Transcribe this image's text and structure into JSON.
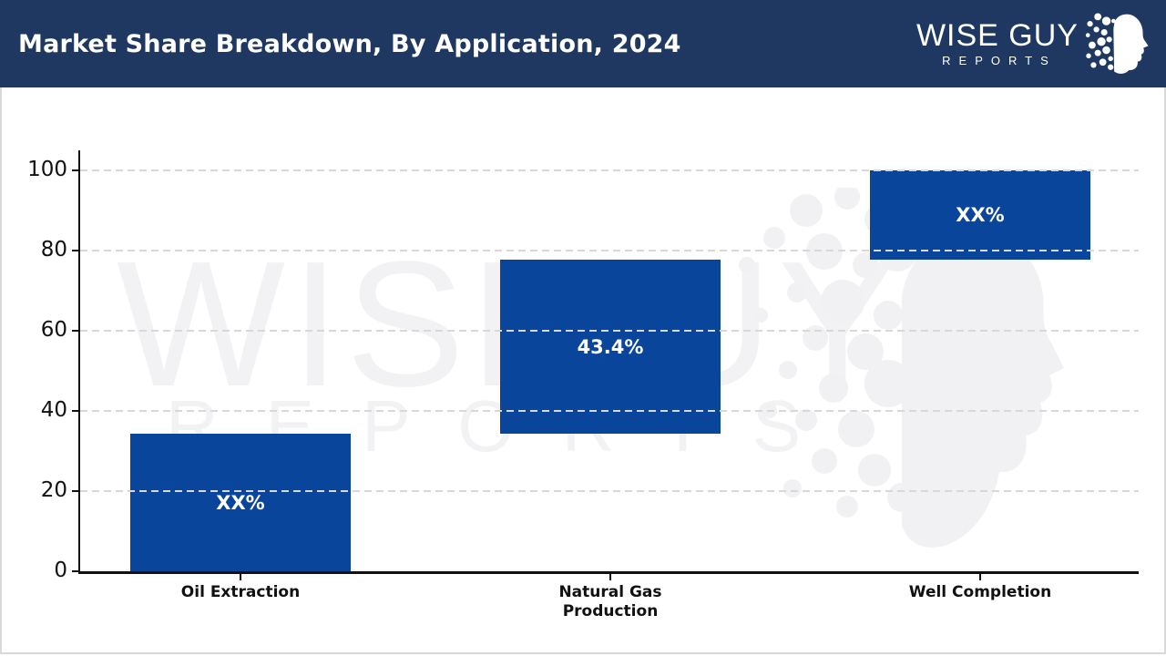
{
  "header": {
    "title": "Market Share Breakdown, By Application, 2024",
    "logo": {
      "name": "WISE GUY",
      "subtitle": "REPORTS"
    }
  },
  "watermark": {
    "word1": "WISE",
    "word2": "GUY",
    "reports": "REPORTS"
  },
  "chart_data": {
    "type": "bar",
    "subtype": "floating-waterfall",
    "title": "Market Share Breakdown, By Application, 2024",
    "categories": [
      "Oil Extraction",
      "Natural Gas Production",
      "Well Completion"
    ],
    "category_label_lines": [
      [
        "Oil Extraction"
      ],
      [
        "Natural Gas",
        "Production"
      ],
      [
        "Well Completion"
      ]
    ],
    "bars": [
      {
        "category": "Oil Extraction",
        "start": 0,
        "end": 34.3,
        "value": 34.3,
        "label": "XX%"
      },
      {
        "category": "Natural Gas Production",
        "start": 34.3,
        "end": 77.7,
        "value": 43.4,
        "label": "43.4%"
      },
      {
        "category": "Well Completion",
        "start": 77.7,
        "end": 100,
        "value": 22.3,
        "label": "XX%"
      }
    ],
    "xlabel": "",
    "ylabel": "",
    "yticks": [
      0,
      20,
      40,
      60,
      80,
      100
    ],
    "ylim": [
      0,
      105
    ],
    "grid": "dashed-horizontal",
    "legend": "none",
    "colors": {
      "bar": "#0A459C",
      "bar_label_text": "#ffffff",
      "header_bg": "#1F3862",
      "gridline": "#d8d8d8",
      "axis": "#111111",
      "watermark": "#f2f2f4"
    }
  }
}
